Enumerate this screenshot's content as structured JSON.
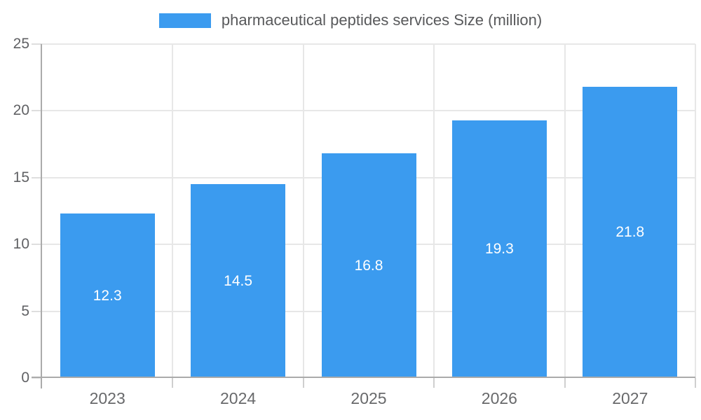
{
  "legend": {
    "label": "pharmaceutical peptides services Size (million)",
    "swatch_color": "#3B9BEF"
  },
  "chart_data": {
    "type": "bar",
    "title": "pharmaceutical peptides services Size (million)",
    "categories": [
      "2023",
      "2024",
      "2025",
      "2026",
      "2027"
    ],
    "values": [
      12.3,
      14.5,
      16.8,
      19.3,
      21.8
    ],
    "value_labels": [
      "12.3",
      "14.5",
      "16.8",
      "19.3",
      "21.8"
    ],
    "xlabel": "",
    "ylabel": "",
    "ylim": [
      0,
      25
    ],
    "yticks": [
      0,
      5,
      10,
      15,
      20,
      25
    ],
    "ytick_labels": [
      "0",
      "5",
      "10",
      "15",
      "20",
      "25"
    ],
    "grid": true,
    "legend_position": "top-center",
    "bar_color": "#3B9BEF",
    "value_label_color": "#ffffff",
    "value_label_position": "inside-center"
  },
  "colors": {
    "background": "#ffffff",
    "gridline": "#e7e7e7",
    "axis_line": "#ababab",
    "tick_label": "#606164",
    "legend_text": "#58595b"
  }
}
